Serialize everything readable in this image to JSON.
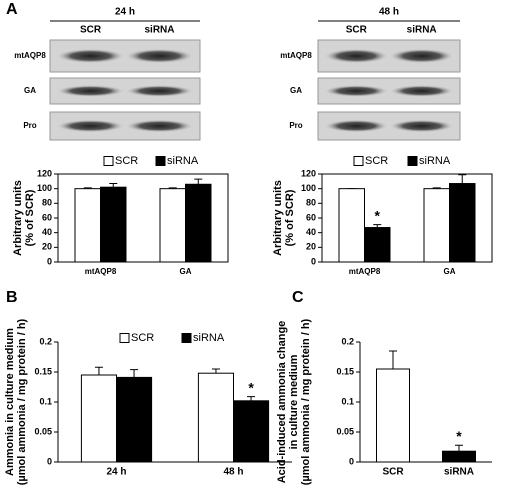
{
  "panel_label_a": "A",
  "blots": [
    {
      "time": "24 h",
      "lanes": [
        "SCR",
        "siRNA"
      ],
      "rows": [
        "mtAQP8",
        "GA",
        "Pro"
      ]
    },
    {
      "time": "48 h",
      "lanes": [
        "SCR",
        "siRNA"
      ],
      "rows": [
        "mtAQP8",
        "GA",
        "Pro"
      ]
    }
  ],
  "chart_data": [
    {
      "type": "bar",
      "y_label": [
        "Arbitrary units",
        "(% of SCR)"
      ],
      "categories": [
        "mtAQP8",
        "GA"
      ],
      "series": [
        {
          "name": "SCR",
          "color": "#ffffff",
          "values": [
            100,
            100
          ],
          "errors": [
            1,
            1
          ]
        },
        {
          "name": "siRNA",
          "color": "#000000",
          "values": [
            102,
            106
          ],
          "errors": [
            5,
            7
          ]
        }
      ],
      "ylim": [
        0,
        120
      ],
      "yticks": [
        0,
        20,
        40,
        60,
        80,
        100,
        120
      ],
      "legend": true,
      "frame": true
    },
    {
      "type": "bar",
      "y_label": [
        "Arbitrary units",
        "(% of SCR)"
      ],
      "categories": [
        "mtAQP8",
        "GA"
      ],
      "series": [
        {
          "name": "SCR",
          "color": "#ffffff",
          "values": [
            100,
            100
          ],
          "errors": [
            0,
            1
          ]
        },
        {
          "name": "siRNA",
          "color": "#000000",
          "values": [
            47,
            107
          ],
          "errors": [
            4,
            12
          ],
          "annotations": [
            "*",
            null
          ]
        }
      ],
      "ylim": [
        0,
        120
      ],
      "yticks": [
        0,
        20,
        40,
        60,
        80,
        100,
        120
      ],
      "legend": true,
      "frame": true
    },
    {
      "type": "bar",
      "panel_label": "B",
      "y_label": [
        "Ammonia  in culture medium",
        "(µmol ammonia / mg protein / h)"
      ],
      "categories": [
        "24 h",
        "48 h"
      ],
      "series": [
        {
          "name": "SCR",
          "color": "#ffffff",
          "values": [
            0.145,
            0.148
          ],
          "errors": [
            0.013,
            0.007
          ]
        },
        {
          "name": "siRNA",
          "color": "#000000",
          "values": [
            0.141,
            0.102
          ],
          "errors": [
            0.013,
            0.007
          ],
          "annotations": [
            null,
            "*"
          ]
        }
      ],
      "ylim": [
        0,
        0.2
      ],
      "yticks": [
        0,
        0.05,
        0.1,
        0.15,
        0.2
      ],
      "legend": true,
      "frame": false
    },
    {
      "type": "bar",
      "panel_label": "C",
      "y_label": [
        "Acid-induced ammonia change",
        "in culture medium",
        "(µmol ammonia / mg protein / h)"
      ],
      "categories": [
        "SCR",
        "siRNA"
      ],
      "series": [
        {
          "colors": [
            "#ffffff",
            "#000000"
          ],
          "values": [
            0.155,
            0.018
          ],
          "errors": [
            0.03,
            0.01
          ],
          "annotations": [
            null,
            "*"
          ]
        }
      ],
      "ylim": [
        0,
        0.2
      ],
      "yticks": [
        0,
        0.05,
        0.1,
        0.15,
        0.2
      ],
      "legend": false,
      "frame": false
    }
  ]
}
